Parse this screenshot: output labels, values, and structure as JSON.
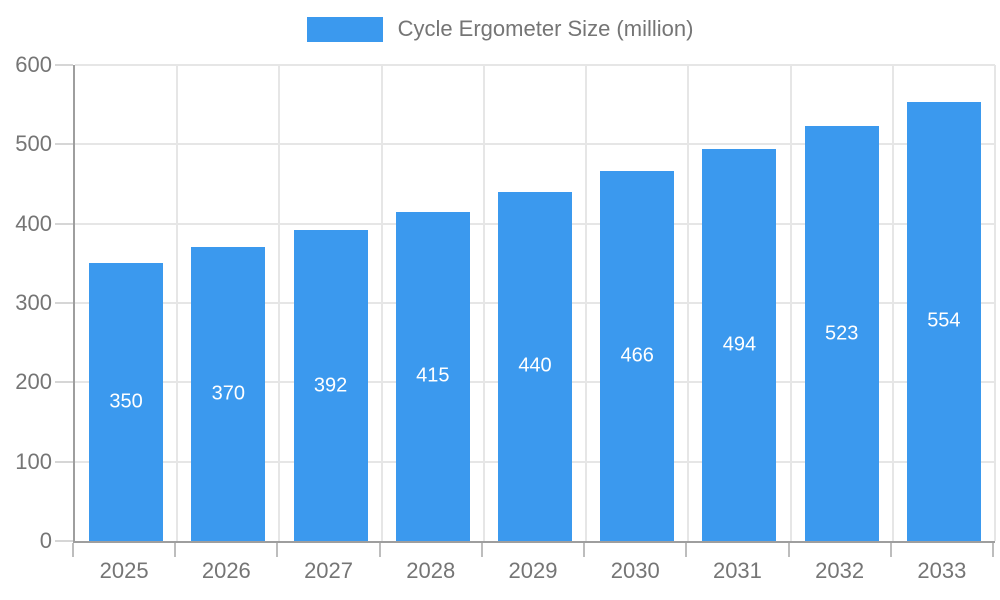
{
  "chart_data": {
    "type": "bar",
    "title": "Cycle Ergometer Size (million)",
    "categories": [
      "2025",
      "2026",
      "2027",
      "2028",
      "2029",
      "2030",
      "2031",
      "2032",
      "2033"
    ],
    "values": [
      350,
      370,
      392,
      415,
      440,
      466,
      494,
      523,
      554
    ],
    "xlabel": "",
    "ylabel": "",
    "ylim": [
      0,
      600
    ],
    "ytick_step": 100,
    "yticks": [
      0,
      100,
      200,
      300,
      400,
      500,
      600
    ],
    "grid": true,
    "legend_position": "top",
    "value_labels": "inside-center"
  },
  "colors": {
    "bar": "#3b99ee",
    "bar_label": "#ffffff",
    "axis_line": "#9e9e9e",
    "gridline": "#e6e6e6",
    "tick": "#bdbdbd",
    "text": "#757575",
    "background": "#ffffff"
  }
}
